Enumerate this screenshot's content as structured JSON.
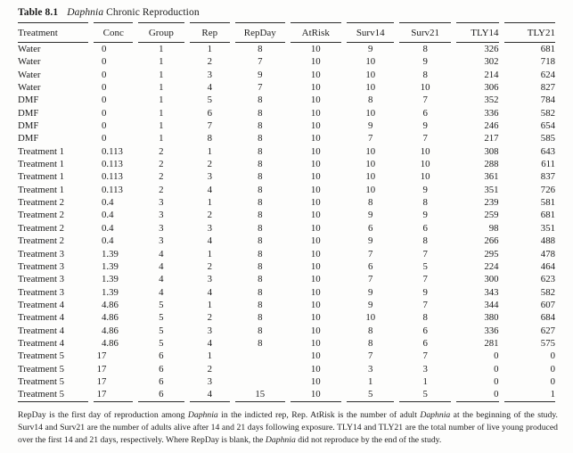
{
  "page": {
    "background_color": "#fdfdfc",
    "text_color": "#1c1c1c",
    "rule_color": "#2b2b2b"
  },
  "title": {
    "label": "Table 8.1",
    "subject_italic": "Daphnia",
    "rest": "Chronic Reproduction"
  },
  "table": {
    "columns": [
      "Treatment",
      "Conc",
      "Group",
      "Rep",
      "RepDay",
      "AtRisk",
      "Surv14",
      "Surv21",
      "TLY14",
      "TLY21"
    ],
    "rows": [
      [
        "Water",
        "0",
        "1",
        "1",
        "8",
        "10",
        "9",
        "8",
        "326",
        "681"
      ],
      [
        "Water",
        "0",
        "1",
        "2",
        "7",
        "10",
        "10",
        "9",
        "302",
        "718"
      ],
      [
        "Water",
        "0",
        "1",
        "3",
        "9",
        "10",
        "10",
        "8",
        "214",
        "624"
      ],
      [
        "Water",
        "0",
        "1",
        "4",
        "7",
        "10",
        "10",
        "10",
        "306",
        "827"
      ],
      [
        "DMF",
        "0",
        "1",
        "5",
        "8",
        "10",
        "8",
        "7",
        "352",
        "784"
      ],
      [
        "DMF",
        "0",
        "1",
        "6",
        "8",
        "10",
        "10",
        "6",
        "336",
        "582"
      ],
      [
        "DMF",
        "0",
        "1",
        "7",
        "8",
        "10",
        "9",
        "9",
        "246",
        "654"
      ],
      [
        "DMF",
        "0",
        "1",
        "8",
        "8",
        "10",
        "7",
        "7",
        "217",
        "585"
      ],
      [
        "Treatment 1",
        "0.113",
        "2",
        "1",
        "8",
        "10",
        "10",
        "10",
        "308",
        "643"
      ],
      [
        "Treatment 1",
        "0.113",
        "2",
        "2",
        "8",
        "10",
        "10",
        "10",
        "288",
        "611"
      ],
      [
        "Treatment 1",
        "0.113",
        "2",
        "3",
        "8",
        "10",
        "10",
        "10",
        "361",
        "837"
      ],
      [
        "Treatment 1",
        "0.113",
        "2",
        "4",
        "8",
        "10",
        "10",
        "9",
        "351",
        "726"
      ],
      [
        "Treatment 2",
        "0.4",
        "3",
        "1",
        "8",
        "10",
        "8",
        "8",
        "239",
        "581"
      ],
      [
        "Treatment 2",
        "0.4",
        "3",
        "2",
        "8",
        "10",
        "9",
        "9",
        "259",
        "681"
      ],
      [
        "Treatment 2",
        "0.4",
        "3",
        "3",
        "8",
        "10",
        "6",
        "6",
        "98",
        "351"
      ],
      [
        "Treatment 2",
        "0.4",
        "3",
        "4",
        "8",
        "10",
        "9",
        "8",
        "266",
        "488"
      ],
      [
        "Treatment 3",
        "1.39",
        "4",
        "1",
        "8",
        "10",
        "7",
        "7",
        "295",
        "478"
      ],
      [
        "Treatment 3",
        "1.39",
        "4",
        "2",
        "8",
        "10",
        "6",
        "5",
        "224",
        "464"
      ],
      [
        "Treatment 3",
        "1.39",
        "4",
        "3",
        "8",
        "10",
        "7",
        "7",
        "300",
        "623"
      ],
      [
        "Treatment 3",
        "1.39",
        "4",
        "4",
        "8",
        "10",
        "9",
        "9",
        "343",
        "582"
      ],
      [
        "Treatment 4",
        "4.86",
        "5",
        "1",
        "8",
        "10",
        "9",
        "7",
        "344",
        "607"
      ],
      [
        "Treatment 4",
        "4.86",
        "5",
        "2",
        "8",
        "10",
        "10",
        "8",
        "380",
        "684"
      ],
      [
        "Treatment 4",
        "4.86",
        "5",
        "3",
        "8",
        "10",
        "8",
        "6",
        "336",
        "627"
      ],
      [
        "Treatment 4",
        "4.86",
        "5",
        "4",
        "8",
        "10",
        "8",
        "6",
        "281",
        "575"
      ],
      [
        "Treatment 5",
        "17",
        "6",
        "1",
        "",
        "10",
        "7",
        "7",
        "0",
        "0"
      ],
      [
        "Treatment 5",
        "17",
        "6",
        "2",
        "",
        "10",
        "3",
        "3",
        "0",
        "0"
      ],
      [
        "Treatment 5",
        "17",
        "6",
        "3",
        "",
        "10",
        "1",
        "1",
        "0",
        "0"
      ],
      [
        "Treatment 5",
        "17",
        "6",
        "4",
        "15",
        "10",
        "5",
        "5",
        "0",
        "1"
      ]
    ]
  },
  "footnote": {
    "segments": [
      {
        "text": "RepDay is the first day of reproduction among ",
        "italic": false
      },
      {
        "text": "Daphnia",
        "italic": true
      },
      {
        "text": " in the indicted rep, Rep. AtRisk is the number of adult ",
        "italic": false
      },
      {
        "text": "Daphnia",
        "italic": true
      },
      {
        "text": " at the beginning of the study. Surv14 and Surv21 are the number of adults alive after 14 and 21 days following exposure. TLY14 and TLY21 are the total number of live young produced over the first 14 and 21 days, respectively. Where RepDay is blank, the ",
        "italic": false
      },
      {
        "text": "Daphnia",
        "italic": true
      },
      {
        "text": " did not reproduce by the end of the study.",
        "italic": false
      }
    ]
  }
}
